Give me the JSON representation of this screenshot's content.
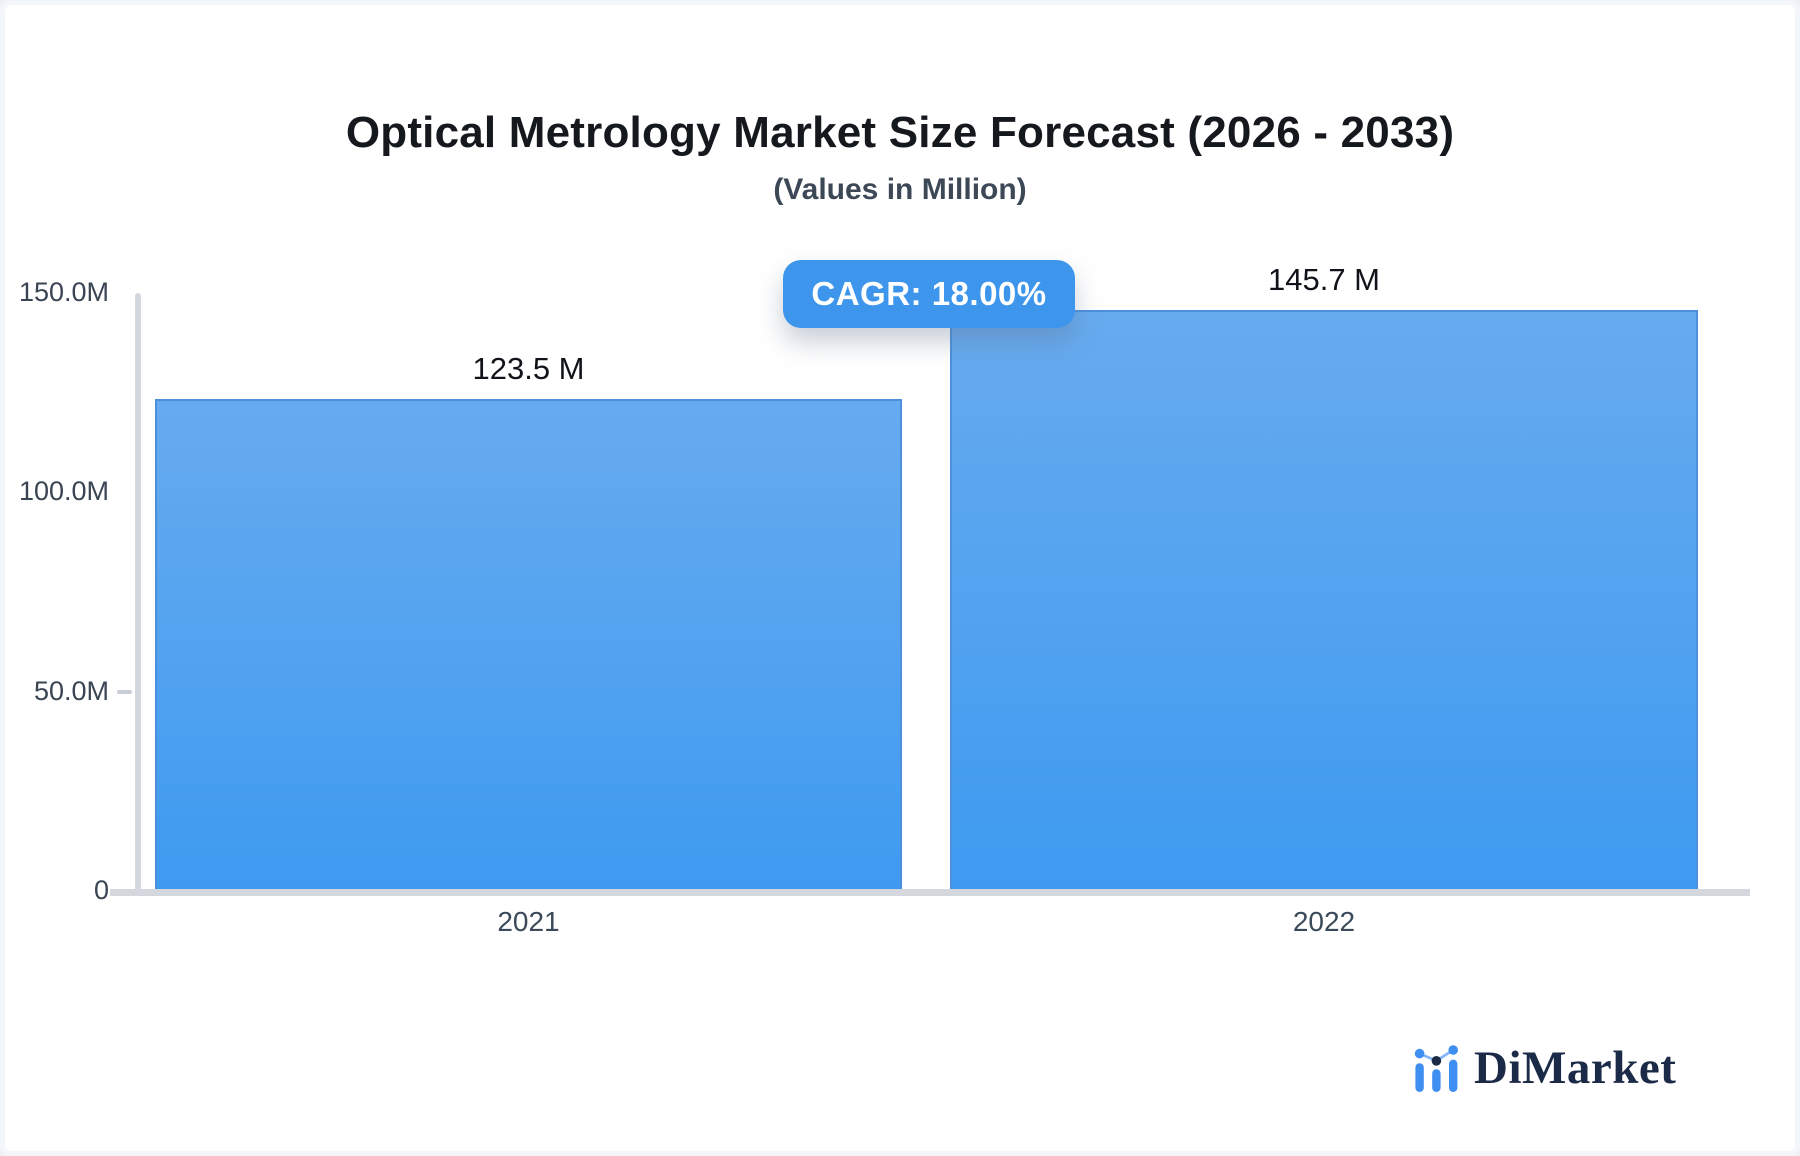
{
  "chart_data": {
    "type": "bar",
    "title": "Optical Metrology Market Size Forecast (2026 - 2033)",
    "subtitle": "(Values in Million)",
    "categories": [
      "2021",
      "2022"
    ],
    "values": [
      123.5,
      145.7
    ],
    "value_labels": [
      "123.5 M",
      "145.7 M"
    ],
    "xlabel": "",
    "ylabel": "",
    "ylim": [
      0,
      150
    ],
    "yticks": [
      "150.0M",
      "100.0M",
      "50.0M",
      "0"
    ],
    "grid": false,
    "legend": "none",
    "annotation": "CAGR: 18.00%",
    "bar_color_top": "#67abef",
    "bar_color_bottom": "#3e9af0",
    "bar_border_color": "#4a90dd",
    "accent_color": "#3d96ec",
    "axis_color": "#d4d8de"
  },
  "badge": {
    "label": "CAGR: 18.00%"
  },
  "branding": {
    "logo_text": "DiMarket",
    "logo_color": "#1b2a47",
    "logo_icon_color": "#3f8ef2"
  }
}
